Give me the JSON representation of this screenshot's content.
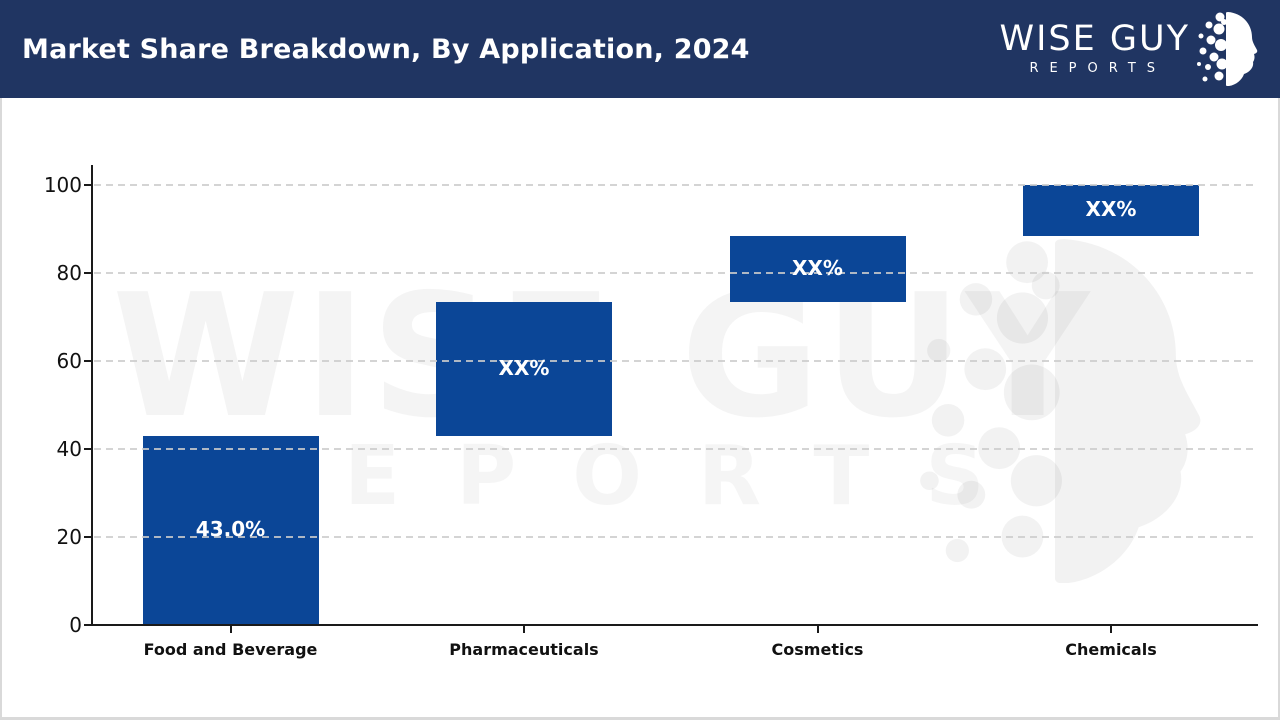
{
  "header": {
    "title": "Market Share Breakdown, By Application, 2024",
    "bg_color": "#203562",
    "logo": {
      "line1": "WISE GUY",
      "line2": "REPORTS"
    }
  },
  "watermark": {
    "line1": "WISE GUY",
    "line2": "REPORTS"
  },
  "chart_data": {
    "type": "bar",
    "subtype": "waterfall",
    "title": "Market Share Breakdown, By Application, 2024",
    "categories": [
      "Food and Beverage",
      "Pharmaceuticals",
      "Cosmetics",
      "Chemicals"
    ],
    "segments": [
      {
        "category": "Food and Beverage",
        "start": 0,
        "end": 43,
        "label": "43.0%"
      },
      {
        "category": "Pharmaceuticals",
        "start": 43,
        "end": 73.5,
        "label": "XX%"
      },
      {
        "category": "Cosmetics",
        "start": 73.5,
        "end": 88.5,
        "label": "XX%"
      },
      {
        "category": "Chemicals",
        "start": 88.5,
        "end": 100,
        "label": "XX%"
      }
    ],
    "ylim": [
      0,
      100
    ],
    "yticks": [
      0,
      20,
      40,
      60,
      80,
      100
    ],
    "grid": "horizontal dashed",
    "legend": "none",
    "bar_color": "#0b4697",
    "bar_label_color": "#ffffff",
    "axis_color": "#1a1a1a",
    "grid_color": "#cccccc"
  }
}
